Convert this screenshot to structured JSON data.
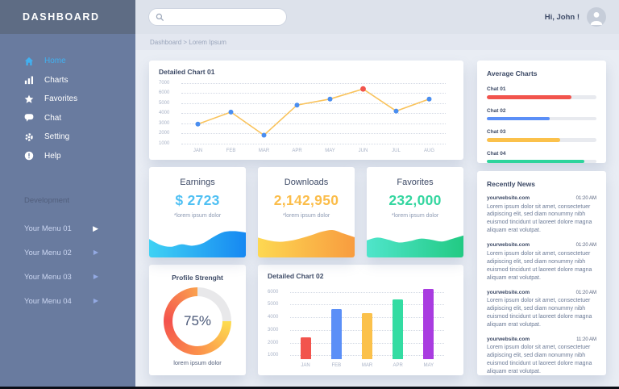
{
  "app": {
    "title": "DASHBOARD"
  },
  "topbar": {
    "greeting": "Hi, John !",
    "search_placeholder": ""
  },
  "breadcrumb": "Dashboard > Lorem Ipsum",
  "colors": {
    "accent_blue": "#41b0f0",
    "sidebar": "#697b9f",
    "sidebar_header": "#5e6c84",
    "topbar_bg": "#dde2eb",
    "content_bg": "#e9edf4"
  },
  "sidebar": {
    "menu": [
      {
        "name": "home",
        "label": "Home",
        "active": true
      },
      {
        "name": "charts",
        "label": "Charts",
        "active": false
      },
      {
        "name": "favorites",
        "label": "Favorites",
        "active": false
      },
      {
        "name": "chat",
        "label": "Chat",
        "active": false
      },
      {
        "name": "setting",
        "label": "Setting",
        "active": false
      },
      {
        "name": "help",
        "label": "Help",
        "active": false
      }
    ],
    "section_label": "Development",
    "dev_menu": [
      "Your Menu 01",
      "Your Menu 02",
      "Your Menu 03",
      "Your Menu 04"
    ]
  },
  "stats": [
    {
      "title": "Earnings",
      "value": "$ 2723",
      "note": "*lorem ipsum dolor",
      "value_color": "#4fc0f3",
      "wave_from": "#3fd2f4",
      "wave_to": "#1688f2",
      "trend": [
        52,
        36,
        30,
        37,
        33,
        40,
        58,
        72,
        74,
        70
      ]
    },
    {
      "title": "Downloads",
      "value": "2,142,950",
      "note": "*lorem ipsum dolor",
      "value_color": "#fbbd4a",
      "wave_from": "#fdd852",
      "wave_to": "#f89c3f",
      "trend": [
        56,
        48,
        44,
        47,
        54,
        63,
        73,
        77,
        67,
        57
      ]
    },
    {
      "title": "Favorites",
      "value": "232,000",
      "note": "*lorem ipsum dolor",
      "value_color": "#35d6a0",
      "wave_from": "#4fe5cb",
      "wave_to": "#22ca83",
      "trend": [
        48,
        56,
        50,
        42,
        46,
        53,
        50,
        45,
        53,
        62
      ]
    }
  ],
  "news": {
    "title": "Recently News",
    "items": [
      {
        "source": "yourwebsite.com",
        "time": "01:20 AM",
        "body": "Lorem ipsum dolor sit amet, consectetuer adipiscing elit, sed diam nonummy nibh euismod tincidunt ut laoreet dolore magna aliquam erat volutpat."
      },
      {
        "source": "yourwebsite.com",
        "time": "01:20 AM",
        "body": "Lorem ipsum dolor sit amet, consectetuer adipiscing elit, sed diam nonummy nibh euismod tincidunt ut laoreet dolore magna aliquam erat volutpat."
      },
      {
        "source": "yourwebsite.com",
        "time": "01:20 AM",
        "body": "Lorem ipsum dolor sit amet, consectetuer adipiscing elit, sed diam nonummy nibh euismod tincidunt ut laoreet dolore magna aliquam erat volutpat."
      },
      {
        "source": "yourwebsite.com",
        "time": "11:20 AM",
        "body": "Lorem ipsum dolor sit amet, consectetuer adipiscing elit, sed diam nonummy nibh euismod tincidunt ut laoreet dolore magna aliquam erat volutpat."
      }
    ]
  },
  "chart_data": [
    {
      "id": "detailed-chart-01",
      "type": "line",
      "title": "Detailed Chart 01",
      "x": [
        "JAN",
        "FEB",
        "MAR",
        "APR",
        "MAY",
        "JUN",
        "JUL",
        "AUG"
      ],
      "values": [
        2900,
        4100,
        1800,
        4800,
        5400,
        6400,
        4200,
        5400
      ],
      "yticks": [
        1000,
        2000,
        3000,
        4000,
        5000,
        6000,
        7000
      ],
      "ylim": [
        800,
        7300
      ],
      "grid": "dotted horizontal",
      "line_color": "#f9c35c",
      "point_color": "#4a8ef0",
      "highlight_index": 5,
      "highlight_color": "#f2544d",
      "legend": "none"
    },
    {
      "id": "average-charts",
      "type": "bar",
      "orientation": "horizontal",
      "title": "Average Charts",
      "categories": [
        "Chat 01",
        "Chat 02",
        "Chat 03",
        "Chat 04"
      ],
      "values": [
        77,
        57,
        67,
        89
      ],
      "unit": "%",
      "xlim": [
        0,
        100
      ],
      "colors": [
        "#f2544d",
        "#5b8ff7",
        "#fbc14b",
        "#2ed49c"
      ],
      "track_color": "#e8eaef",
      "legend": "none"
    },
    {
      "id": "profile-strength",
      "type": "donut",
      "title": "Profile Strenght",
      "value": 75,
      "label": "75%",
      "caption": "lorem ipsum dolor",
      "remainder_color": "#e8e8ea",
      "gradient": [
        "#fddd4f",
        "#fb8f4b",
        "#f4524d",
        "#faa14e"
      ]
    },
    {
      "id": "detailed-chart-02",
      "type": "bar",
      "title": "Detailed Chart 02",
      "categories": [
        "JAN",
        "FEB",
        "MAR",
        "APR",
        "MAY"
      ],
      "values": [
        2400,
        4650,
        4330,
        5400,
        6250
      ],
      "yticks": [
        1000,
        2000,
        3000,
        4000,
        5000,
        6000
      ],
      "ylim": [
        700,
        6600
      ],
      "grid": "dotted horizontal",
      "colors": [
        "#f2544d",
        "#5b8ff7",
        "#fbc14b",
        "#33dca2",
        "#a93ce0"
      ],
      "legend": "none"
    }
  ]
}
